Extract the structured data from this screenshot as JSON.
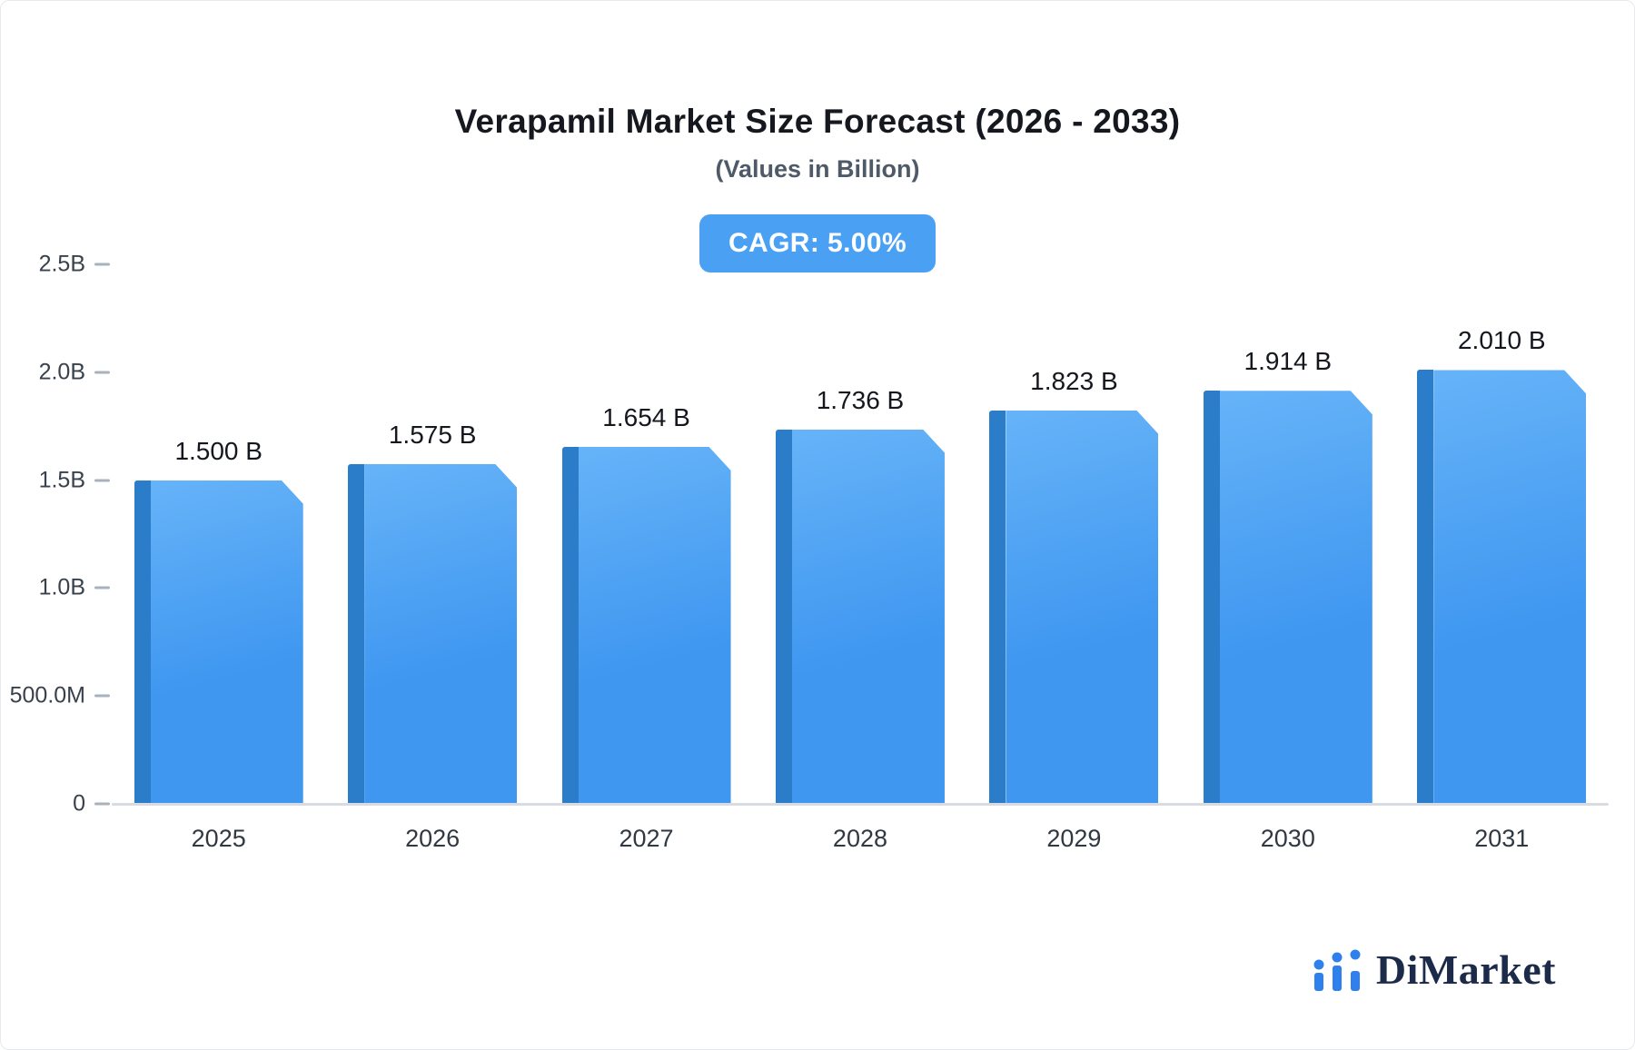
{
  "header": {
    "badge_color": "#4AA1F4"
  },
  "chart_data": {
    "type": "bar",
    "title": "Verapamil Market Size Forecast (2026 - 2033)",
    "subtitle": "(Values in Billion)",
    "annotations": [
      "CAGR: 5.00%"
    ],
    "categories": [
      "2025",
      "2026",
      "2027",
      "2028",
      "2029",
      "2030",
      "2031"
    ],
    "values": [
      1.5,
      1.575,
      1.654,
      1.736,
      1.823,
      1.914,
      2.01
    ],
    "value_labels": [
      "1.500 B",
      "1.575 B",
      "1.654 B",
      "1.736 B",
      "1.823 B",
      "1.914 B",
      "2.010 B"
    ],
    "xlabel": "",
    "ylabel": "",
    "ylim": [
      0,
      2.5
    ],
    "y_ticks": [
      {
        "value": 2.5,
        "label": "2.5B"
      },
      {
        "value": 2.0,
        "label": "2.0B"
      },
      {
        "value": 1.5,
        "label": "1.5B"
      },
      {
        "value": 1.0,
        "label": "1.0B"
      },
      {
        "value": 0.5,
        "label": "500.0M"
      },
      {
        "value": 0,
        "label": "0"
      }
    ],
    "grid": "off",
    "legend": "none",
    "colors": {
      "bar": "#3F97F0",
      "bar_light": "#66B3F8",
      "bar_side": "#2B7CC9"
    }
  },
  "footer": {
    "brand": "DiMarket",
    "logo_icon": "bar-chart-icon",
    "brand_color": "#1C2B4A",
    "icon_color": "#2F80ED"
  }
}
